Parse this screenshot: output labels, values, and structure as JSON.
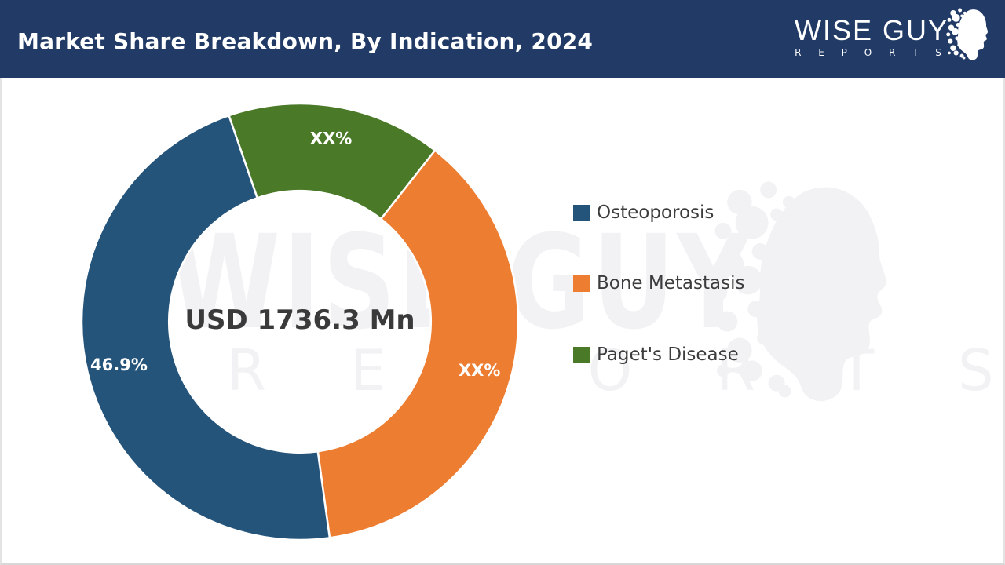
{
  "header": {
    "title": "Market Share Breakdown, By Indication, 2024",
    "bg_color": "#213A66",
    "logo": {
      "line1": "WISE GUY",
      "line2": "R E P O R T S"
    }
  },
  "watermark": {
    "line1": "WISE GUY",
    "line2": "R E P O R T S"
  },
  "chart_data": {
    "type": "pie",
    "subtype": "donut",
    "title": "Market Share Breakdown, By Indication, 2024",
    "center_label": "USD 1736.3 Mn",
    "start_angle_deg": -19,
    "inner_radius_ratio": 0.6,
    "legend_position": "right",
    "segments": [
      {
        "name": "Paget's Disease",
        "display_label": "XX%",
        "share_pct_est": 15.9,
        "color": "#4A7A28"
      },
      {
        "name": "Bone Metastasis",
        "display_label": "XX%",
        "share_pct_est": 37.2,
        "color": "#ED7D31"
      },
      {
        "name": "Osteoporosis",
        "display_label": "46.9%",
        "share_pct_est": 46.9,
        "color": "#25547B"
      }
    ]
  },
  "legend": {
    "items": [
      {
        "label": "Osteoporosis",
        "color": "#25547B"
      },
      {
        "label": "Bone Metastasis",
        "color": "#ED7D31"
      },
      {
        "label": "Paget's Disease",
        "color": "#4A7A28"
      }
    ]
  },
  "colors": {
    "header_bg": "#213A66",
    "watermark": "#F2F2F5",
    "center_text": "#3A3A3A",
    "legend_text": "#3C3C3C",
    "border": "#D8D8D8"
  }
}
